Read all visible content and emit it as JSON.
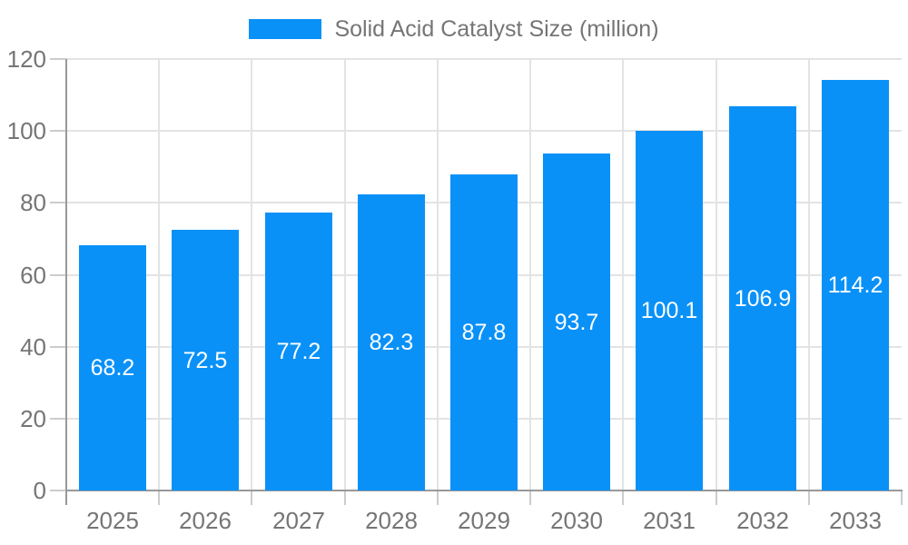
{
  "legend": {
    "label": "Solid Acid Catalyst Size (million)"
  },
  "colors": {
    "bar": "#0991f8",
    "axis_line": "#999999",
    "grid_line": "#e3e3e3",
    "tick_mark": "#cccccc",
    "axis_text": "#757575",
    "value_text": "#ffffff",
    "background": "#ffffff"
  },
  "chart_data": {
    "type": "bar",
    "title": "Solid Acid Catalyst Size (million)",
    "series_name": "Solid Acid Catalyst Size (million)",
    "categories": [
      "2025",
      "2026",
      "2027",
      "2028",
      "2029",
      "2030",
      "2031",
      "2032",
      "2033"
    ],
    "values": [
      68.2,
      72.5,
      77.2,
      82.3,
      87.8,
      93.7,
      100.1,
      106.9,
      114.2
    ],
    "value_labels": [
      "68.2",
      "72.5",
      "77.2",
      "82.3",
      "87.8",
      "93.7",
      "100.1",
      "106.9",
      "114.2"
    ],
    "xlabel": "",
    "ylabel": "",
    "ylim": [
      0,
      120
    ],
    "yticks": [
      0,
      20,
      40,
      60,
      80,
      100,
      120
    ],
    "grid": true,
    "legend_position": "top",
    "value_labels_position": "inside-center"
  }
}
